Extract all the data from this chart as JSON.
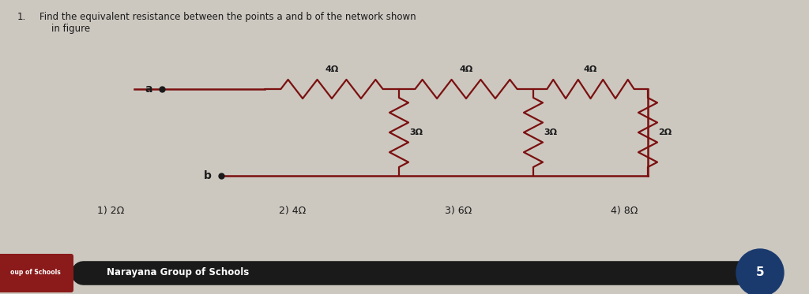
{
  "title_num": "1.",
  "title_text": "Find the equivalent resistance between the points a and b of the network shown\n    in figure",
  "bg_color": "#ccc8c0",
  "wire_color": "#7B1010",
  "text_color": "#1a1a1a",
  "options": [
    "1) 2Ω",
    "2) 4Ω",
    "3) 6Ω",
    "4) 8Ω"
  ],
  "footer_text": "Narayana Group of Schools",
  "footer_num": "5",
  "node_a_label": "a",
  "node_b_label": "b",
  "series_resistors": [
    "4Ω",
    "4Ω",
    "4Ω"
  ],
  "shunt_resistors": [
    "3Ω",
    "3Ω",
    "2Ω"
  ],
  "left_footer_text": "oup of Schools",
  "left_footer_color": "#8B1A1A",
  "footer_bar_color": "#1a1a1a",
  "footer_badge_color": "#1a3a6e"
}
